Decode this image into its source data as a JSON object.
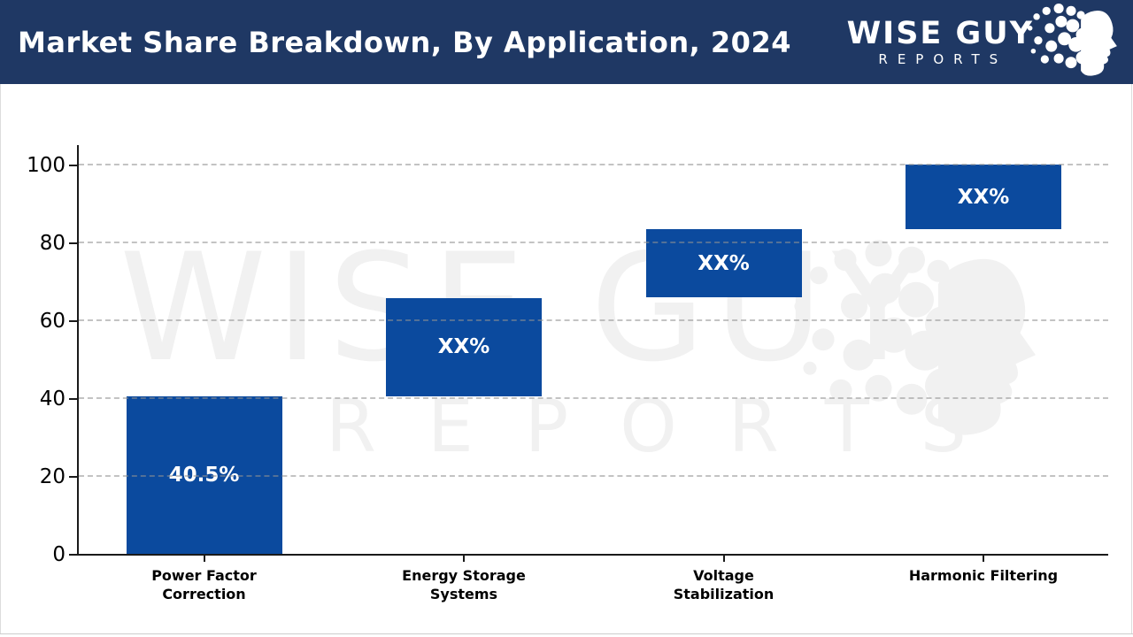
{
  "header": {
    "title": "Market Share Breakdown, By Application, 2024",
    "bg_color": "#1f3864",
    "logo": {
      "line1": "WISE GUY",
      "line2": "REPORTS"
    }
  },
  "watermark": {
    "line1": "WISE GUY",
    "line2": "REPORTS"
  },
  "chart_data": {
    "type": "bar",
    "variant": "floating-waterfall",
    "title": "Market Share Breakdown, By Application, 2024",
    "categories": [
      "Power Factor\nCorrection",
      "Energy Storage\nSystems",
      "Voltage\nStabilization",
      "Harmonic Filtering"
    ],
    "segments": [
      {
        "category": "Power Factor Correction",
        "start": 0,
        "end": 40.5,
        "label": "40.5%"
      },
      {
        "category": "Energy Storage Systems",
        "start": 40.5,
        "end": 65.7,
        "label": "XX%"
      },
      {
        "category": "Voltage Stabilization",
        "start": 65.8,
        "end": 83.4,
        "label": "XX%"
      },
      {
        "category": "Harmonic Filtering",
        "start": 83.4,
        "end": 100,
        "label": "XX%"
      }
    ],
    "yticks": [
      0,
      20,
      40,
      60,
      80,
      100
    ],
    "ylim": [
      0,
      105
    ],
    "xlabel": "",
    "ylabel": "",
    "grid": "horizontal-dashed",
    "legend": "none",
    "bar_color": "#0b4a9e",
    "bar_label_color": "#ffffff",
    "axis_color": "#1a1a1a"
  }
}
